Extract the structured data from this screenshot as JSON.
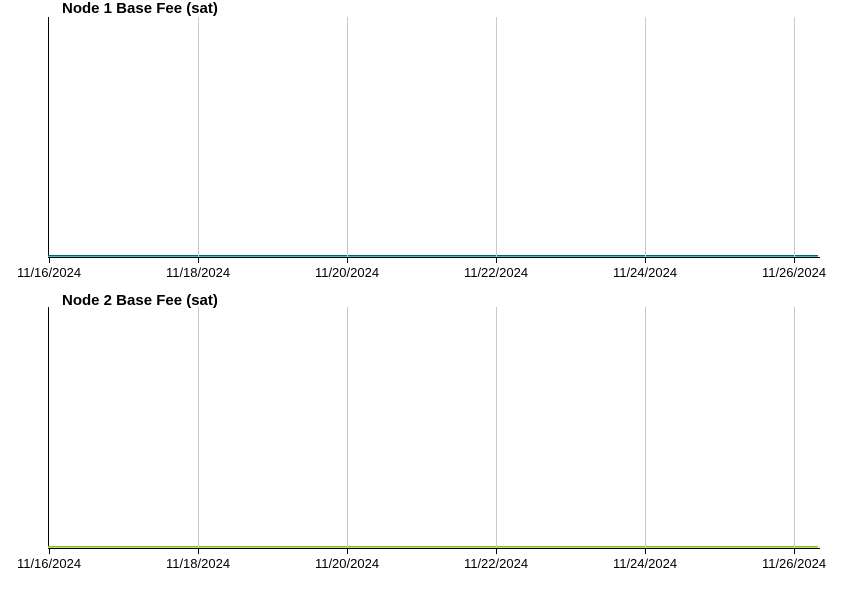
{
  "colors": {
    "background": "#ffffff",
    "axis": "#000000",
    "gridline": "#c9c9c9",
    "text": "#000000",
    "node1_line": "#00666a",
    "node1_line_light": "#3fc1c1",
    "node2_line": "#8ab82c",
    "node2_line_light": "#c3e35e"
  },
  "chart_data": [
    {
      "type": "line",
      "title": "Node 1 Base Fee (sat)",
      "x": [
        "11/16/2024",
        "11/18/2024",
        "11/20/2024",
        "11/22/2024",
        "11/24/2024",
        "11/26/2024"
      ],
      "series": [
        {
          "name": "Node 1 base fee",
          "values": [
            1,
            1,
            1,
            1,
            1,
            1
          ],
          "color": "#00666a",
          "color_light": "#3fc1c1"
        }
      ],
      "xlabel": "",
      "ylabel": "",
      "y_axis_labels": [],
      "grid": "vertical gridlines at each x tick only",
      "legend": "none",
      "note": "flat line sits just above the x-axis baseline; no y-axis tick labels are shown"
    },
    {
      "type": "line",
      "title": "Node 2 Base Fee (sat)",
      "x": [
        "11/16/2024",
        "11/18/2024",
        "11/20/2024",
        "11/22/2024",
        "11/24/2024",
        "11/26/2024"
      ],
      "series": [
        {
          "name": "Node 2 base fee",
          "values": [
            1,
            1,
            1,
            1,
            1,
            1
          ],
          "color": "#8ab82c",
          "color_light": "#c3e35e"
        }
      ],
      "xlabel": "",
      "ylabel": "",
      "y_axis_labels": [],
      "grid": "vertical gridlines at each x tick only",
      "legend": "none",
      "note": "flat line sits just above the x-axis baseline; no y-axis tick labels are shown"
    }
  ]
}
